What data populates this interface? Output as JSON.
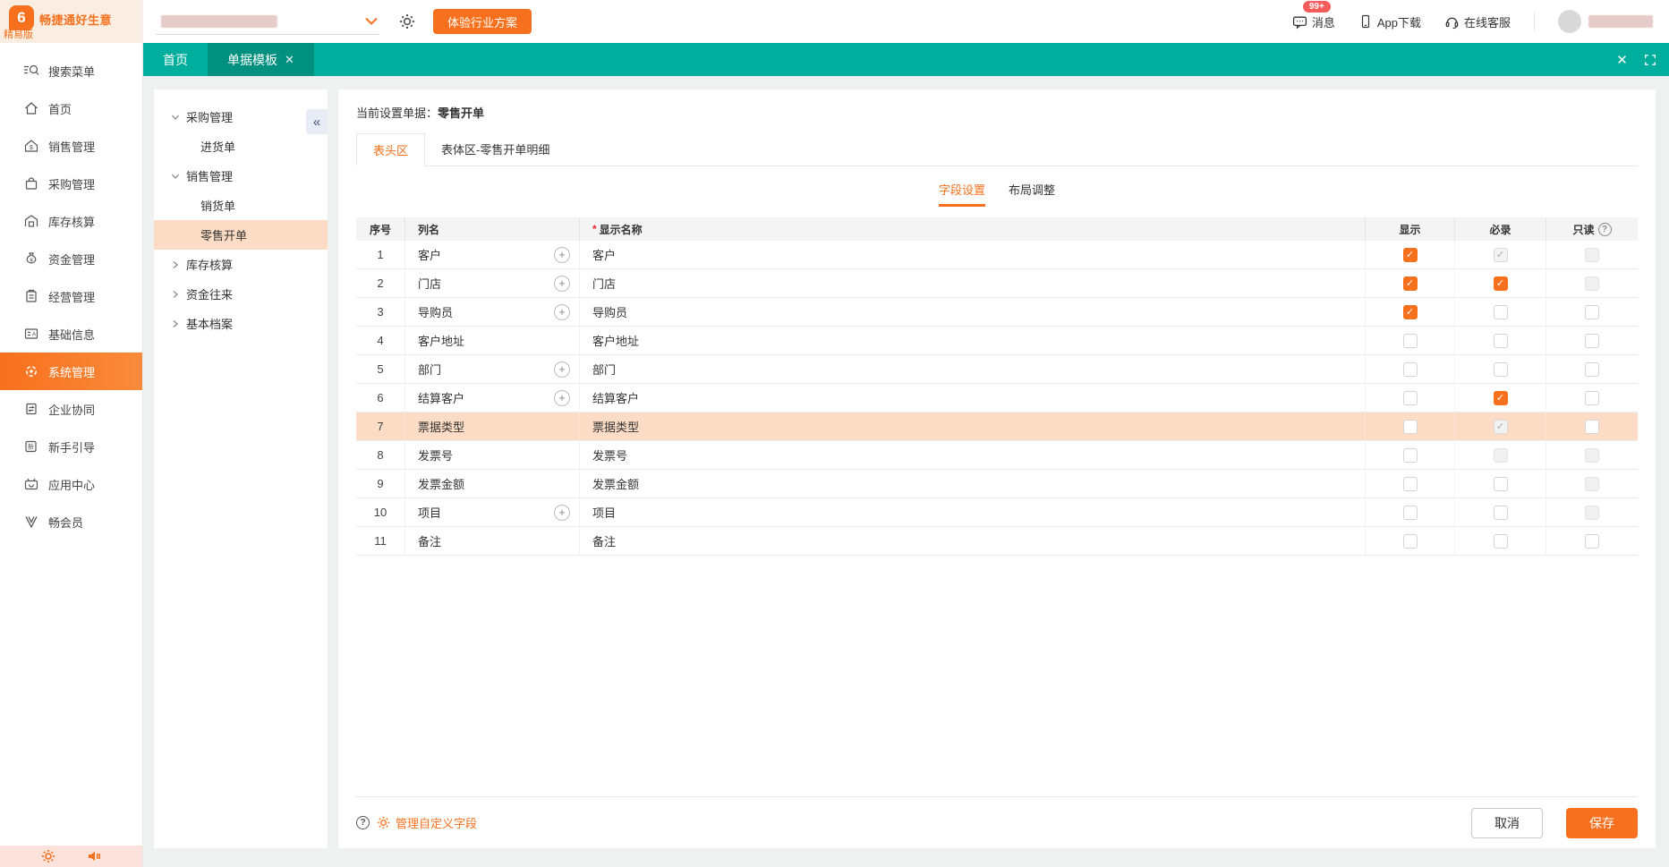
{
  "brand": {
    "name": "畅捷通好生意",
    "edition": "精易版",
    "logo_glyph": "6"
  },
  "topbar": {
    "cta": "体验行业方案",
    "messages": "消息",
    "messages_badge": "99+",
    "app_download": "App下载",
    "online_service": "在线客服"
  },
  "window_tabs": [
    {
      "label": "首页",
      "active": false,
      "closable": false
    },
    {
      "label": "单据模板",
      "active": true,
      "closable": true
    }
  ],
  "tab_controls": {
    "close": "✕"
  },
  "sidebar": {
    "items": [
      {
        "icon": "search-menu-icon",
        "label": "搜索菜单",
        "active": false
      },
      {
        "icon": "home-icon",
        "label": "首页",
        "active": false
      },
      {
        "icon": "sales-icon",
        "label": "销售管理",
        "active": false
      },
      {
        "icon": "purchase-icon",
        "label": "采购管理",
        "active": false
      },
      {
        "icon": "inventory-icon",
        "label": "库存核算",
        "active": false
      },
      {
        "icon": "funds-icon",
        "label": "资金管理",
        "active": false
      },
      {
        "icon": "business-icon",
        "label": "经营管理",
        "active": false
      },
      {
        "icon": "basic-info-icon",
        "label": "基础信息",
        "active": false
      },
      {
        "icon": "system-icon",
        "label": "系统管理",
        "active": true
      },
      {
        "icon": "collaboration-icon",
        "label": "企业协同",
        "active": false
      },
      {
        "icon": "guide-icon",
        "label": "新手引导",
        "active": false
      },
      {
        "icon": "app-center-icon",
        "label": "应用中心",
        "active": false
      },
      {
        "icon": "member-icon",
        "label": "畅会员",
        "active": false
      }
    ]
  },
  "tree": {
    "collapse_glyph": "«",
    "items": [
      {
        "label": "采购管理",
        "level": 0,
        "state": "expanded",
        "selected": false
      },
      {
        "label": "进货单",
        "level": 1,
        "state": "leaf",
        "selected": false
      },
      {
        "label": "销售管理",
        "level": 0,
        "state": "expanded",
        "selected": false
      },
      {
        "label": "销货单",
        "level": 1,
        "state": "leaf",
        "selected": false
      },
      {
        "label": "零售开单",
        "level": 1,
        "state": "leaf",
        "selected": true
      },
      {
        "label": "库存核算",
        "level": 0,
        "state": "collapsed",
        "selected": false
      },
      {
        "label": "资金往来",
        "level": 0,
        "state": "collapsed",
        "selected": false
      },
      {
        "label": "基本档案",
        "level": 0,
        "state": "collapsed",
        "selected": false
      }
    ]
  },
  "content": {
    "current_doc_label": "当前设置单据：",
    "current_doc_value": "零售开单",
    "card_tabs": [
      {
        "label": "表头区",
        "active": true
      },
      {
        "label": "表体区-零售开单明细",
        "active": false
      }
    ],
    "sub_tabs": [
      {
        "label": "字段设置",
        "active": true
      },
      {
        "label": "布局调整",
        "active": false
      }
    ],
    "table": {
      "headers": {
        "num": "序号",
        "col_name": "列名",
        "display_name": "显示名称",
        "required_mark": "*",
        "show": "显示",
        "required": "必录",
        "readonly": "只读",
        "readonly_help": "?"
      },
      "rows": [
        {
          "num": "1",
          "col_name": "客户",
          "has_add": true,
          "display_name": "客户",
          "show": "on",
          "required": "on-disabled",
          "readonly": "off-disabled",
          "highlighted": false
        },
        {
          "num": "2",
          "col_name": "门店",
          "has_add": true,
          "display_name": "门店",
          "show": "on",
          "required": "on",
          "readonly": "off-disabled",
          "highlighted": false
        },
        {
          "num": "3",
          "col_name": "导购员",
          "has_add": true,
          "display_name": "导购员",
          "show": "on",
          "required": "off",
          "readonly": "off",
          "highlighted": false
        },
        {
          "num": "4",
          "col_name": "客户地址",
          "has_add": false,
          "display_name": "客户地址",
          "show": "off",
          "required": "off",
          "readonly": "off",
          "highlighted": false
        },
        {
          "num": "5",
          "col_name": "部门",
          "has_add": true,
          "display_name": "部门",
          "show": "off",
          "required": "off",
          "readonly": "off",
          "highlighted": false
        },
        {
          "num": "6",
          "col_name": "结算客户",
          "has_add": true,
          "display_name": "结算客户",
          "show": "off",
          "required": "on",
          "readonly": "off",
          "highlighted": false
        },
        {
          "num": "7",
          "col_name": "票据类型",
          "has_add": false,
          "display_name": "票据类型",
          "show": "off",
          "required": "on-disabled",
          "readonly": "off",
          "highlighted": true
        },
        {
          "num": "8",
          "col_name": "发票号",
          "has_add": false,
          "display_name": "发票号",
          "show": "off",
          "required": "off-disabled",
          "readonly": "off-disabled",
          "highlighted": false
        },
        {
          "num": "9",
          "col_name": "发票金额",
          "has_add": false,
          "display_name": "发票金额",
          "show": "off",
          "required": "off",
          "readonly": "off-disabled",
          "highlighted": false
        },
        {
          "num": "10",
          "col_name": "项目",
          "has_add": true,
          "display_name": "项目",
          "show": "off",
          "required": "off",
          "readonly": "off-disabled",
          "highlighted": false
        },
        {
          "num": "11",
          "col_name": "备注",
          "has_add": false,
          "display_name": "备注",
          "show": "off",
          "required": "off",
          "readonly": "off",
          "highlighted": false
        }
      ]
    },
    "footer": {
      "help": "?",
      "manage_link": "管理自定义字段",
      "cancel": "取消",
      "save": "保存"
    }
  },
  "colors": {
    "accent_orange": "#F7701D",
    "teal_tabbar": "#00AE9D",
    "teal_tab_active": "#00907F",
    "row_highlight": "#FCDCC4",
    "badge_red": "#F75C5C",
    "logo_bg": "#FAEDE1"
  }
}
